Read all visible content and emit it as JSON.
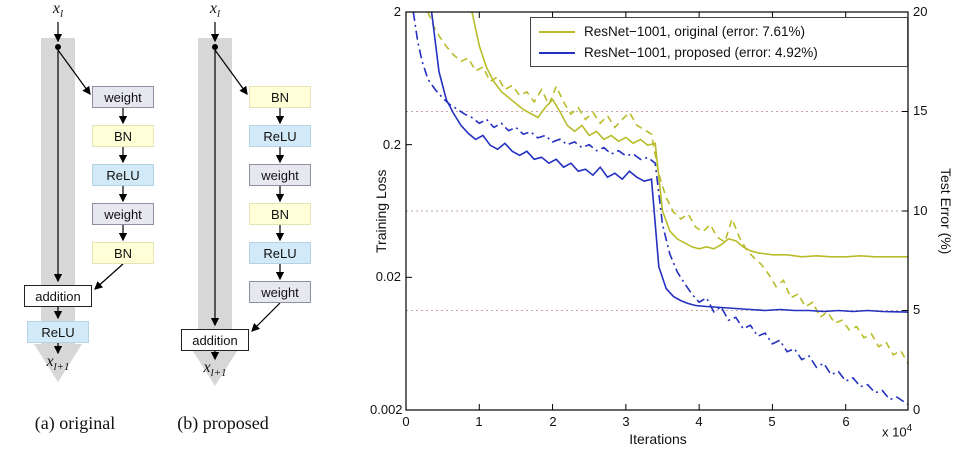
{
  "diagrams": {
    "original": {
      "input_base": "x",
      "input_sub": "l",
      "blocks": [
        "weight",
        "BN",
        "ReLU",
        "weight",
        "BN"
      ],
      "addition_label": "addition",
      "post_block": "ReLU",
      "output_base": "x",
      "output_sub": "l+1",
      "caption": "(a) original"
    },
    "proposed": {
      "input_base": "x",
      "input_sub": "l",
      "blocks": [
        "BN",
        "ReLU",
        "weight",
        "BN",
        "ReLU",
        "weight"
      ],
      "addition_label": "addition",
      "output_base": "x",
      "output_sub": "l+1",
      "caption": "(b) proposed"
    }
  },
  "chart_data": {
    "type": "line",
    "title": "",
    "xlabel": "Iterations",
    "x_unit_base": "x 10",
    "x_unit_sup": "4",
    "ylabel_left": "Training Loss",
    "ylabel_right": "Test Error (%)",
    "x_max": 6.85,
    "x_ticks": [
      "0",
      "1",
      "2",
      "3",
      "4",
      "5",
      "6"
    ],
    "x_tick_values": [
      0,
      1,
      2,
      3,
      4,
      5,
      6
    ],
    "y_left_scale": "log",
    "y_left_ticks": [
      "2",
      "0.2",
      "0.02",
      "0.002"
    ],
    "y_left_tick_values": [
      2,
      0.2,
      0.02,
      0.002
    ],
    "y_left_range": [
      0.002,
      2
    ],
    "y_right_ticks": [
      "20",
      "15",
      "10",
      "5",
      "0"
    ],
    "y_right_tick_values": [
      20,
      15,
      10,
      5,
      0
    ],
    "y_right_range": [
      0,
      20
    ],
    "gridlines_right_values": [
      15,
      10,
      5
    ],
    "legend": [
      {
        "label": "ResNet−1001, original (error: 7.61%)",
        "color": "#b9bc2a"
      },
      {
        "label": "ResNet−1001, proposed (error: 4.92%)",
        "color": "#2431c0"
      }
    ],
    "series": [
      {
        "name": "original-training-loss",
        "axis": "left",
        "style": "dashed",
        "color": "#b9bc2a",
        "points": [
          [
            0.3,
            2.0
          ],
          [
            0.38,
            1.55
          ],
          [
            0.46,
            1.3
          ],
          [
            0.55,
            1.1
          ],
          [
            0.65,
            0.95
          ],
          [
            0.75,
            0.85
          ],
          [
            0.85,
            0.9
          ],
          [
            0.95,
            0.72
          ],
          [
            1.05,
            0.77
          ],
          [
            1.15,
            0.6
          ],
          [
            1.25,
            0.65
          ],
          [
            1.35,
            0.52
          ],
          [
            1.45,
            0.56
          ],
          [
            1.55,
            0.47
          ],
          [
            1.65,
            0.5
          ],
          [
            1.75,
            0.42
          ],
          [
            1.85,
            0.52
          ],
          [
            1.95,
            0.4
          ],
          [
            2.05,
            0.55
          ],
          [
            2.15,
            0.42
          ],
          [
            2.25,
            0.34
          ],
          [
            2.35,
            0.38
          ],
          [
            2.45,
            0.31
          ],
          [
            2.55,
            0.35
          ],
          [
            2.65,
            0.29
          ],
          [
            2.75,
            0.33
          ],
          [
            2.85,
            0.27
          ],
          [
            2.95,
            0.31
          ],
          [
            3.05,
            0.35
          ],
          [
            3.15,
            0.28
          ],
          [
            3.25,
            0.26
          ],
          [
            3.35,
            0.24
          ],
          [
            3.45,
            0.12
          ],
          [
            3.55,
            0.08
          ],
          [
            3.65,
            0.062
          ],
          [
            3.75,
            0.055
          ],
          [
            3.85,
            0.06
          ],
          [
            3.95,
            0.048
          ],
          [
            4.05,
            0.044
          ],
          [
            4.15,
            0.05
          ],
          [
            4.25,
            0.04
          ],
          [
            4.35,
            0.037
          ],
          [
            4.45,
            0.055
          ],
          [
            4.55,
            0.04
          ],
          [
            4.65,
            0.032
          ],
          [
            4.75,
            0.028
          ],
          [
            4.85,
            0.025
          ],
          [
            4.95,
            0.021
          ],
          [
            5.05,
            0.017
          ],
          [
            5.15,
            0.019
          ],
          [
            5.25,
            0.014
          ],
          [
            5.35,
            0.015
          ],
          [
            5.45,
            0.012
          ],
          [
            5.55,
            0.013
          ],
          [
            5.65,
            0.01
          ],
          [
            5.75,
            0.011
          ],
          [
            5.85,
            0.009
          ],
          [
            5.95,
            0.0095
          ],
          [
            6.05,
            0.008
          ],
          [
            6.15,
            0.0085
          ],
          [
            6.25,
            0.007
          ],
          [
            6.35,
            0.0075
          ],
          [
            6.45,
            0.006
          ],
          [
            6.55,
            0.0065
          ],
          [
            6.65,
            0.0052
          ],
          [
            6.75,
            0.0056
          ],
          [
            6.85,
            0.0045
          ]
        ]
      },
      {
        "name": "proposed-training-loss",
        "axis": "left",
        "style": "dashdot",
        "color": "#2431c0",
        "points": [
          [
            0.1,
            2.0
          ],
          [
            0.16,
            1.2
          ],
          [
            0.22,
            0.85
          ],
          [
            0.3,
            0.62
          ],
          [
            0.4,
            0.52
          ],
          [
            0.5,
            0.45
          ],
          [
            0.6,
            0.4
          ],
          [
            0.7,
            0.37
          ],
          [
            0.8,
            0.34
          ],
          [
            0.9,
            0.32
          ],
          [
            1.0,
            0.29
          ],
          [
            1.1,
            0.31
          ],
          [
            1.2,
            0.27
          ],
          [
            1.3,
            0.29
          ],
          [
            1.4,
            0.255
          ],
          [
            1.5,
            0.27
          ],
          [
            1.6,
            0.24
          ],
          [
            1.7,
            0.25
          ],
          [
            1.8,
            0.225
          ],
          [
            1.9,
            0.235
          ],
          [
            2.0,
            0.21
          ],
          [
            2.1,
            0.22
          ],
          [
            2.2,
            0.2
          ],
          [
            2.3,
            0.21
          ],
          [
            2.4,
            0.19
          ],
          [
            2.5,
            0.2
          ],
          [
            2.6,
            0.18
          ],
          [
            2.7,
            0.19
          ],
          [
            2.8,
            0.17
          ],
          [
            2.9,
            0.18
          ],
          [
            3.0,
            0.165
          ],
          [
            3.1,
            0.17
          ],
          [
            3.2,
            0.155
          ],
          [
            3.3,
            0.16
          ],
          [
            3.4,
            0.145
          ],
          [
            3.5,
            0.05
          ],
          [
            3.6,
            0.03
          ],
          [
            3.7,
            0.022
          ],
          [
            3.8,
            0.018
          ],
          [
            3.9,
            0.015
          ],
          [
            4.0,
            0.013
          ],
          [
            4.1,
            0.014
          ],
          [
            4.2,
            0.011
          ],
          [
            4.3,
            0.012
          ],
          [
            4.4,
            0.0095
          ],
          [
            4.5,
            0.01
          ],
          [
            4.6,
            0.0082
          ],
          [
            4.7,
            0.0087
          ],
          [
            4.8,
            0.0072
          ],
          [
            4.9,
            0.0076
          ],
          [
            5.0,
            0.0063
          ],
          [
            5.1,
            0.0067
          ],
          [
            5.2,
            0.0055
          ],
          [
            5.3,
            0.0058
          ],
          [
            5.4,
            0.0048
          ],
          [
            5.5,
            0.0051
          ],
          [
            5.6,
            0.0042
          ],
          [
            5.7,
            0.0045
          ],
          [
            5.8,
            0.0037
          ],
          [
            5.9,
            0.0039
          ],
          [
            6.0,
            0.0033
          ],
          [
            6.1,
            0.0035
          ],
          [
            6.2,
            0.003
          ],
          [
            6.3,
            0.0031
          ],
          [
            6.4,
            0.0027
          ],
          [
            6.5,
            0.0028
          ],
          [
            6.6,
            0.0024
          ],
          [
            6.7,
            0.0025
          ],
          [
            6.85,
            0.0022
          ]
        ]
      },
      {
        "name": "original-test-error",
        "axis": "right",
        "style": "solid",
        "color": "#b9bc2a",
        "points": [
          [
            0.9,
            20
          ],
          [
            1.0,
            18.3
          ],
          [
            1.1,
            17.2
          ],
          [
            1.2,
            16.5
          ],
          [
            1.3,
            16.0
          ],
          [
            1.4,
            15.7
          ],
          [
            1.5,
            15.4
          ],
          [
            1.6,
            15.1
          ],
          [
            1.7,
            14.9
          ],
          [
            1.8,
            14.7
          ],
          [
            1.9,
            15.2
          ],
          [
            2.0,
            15.6
          ],
          [
            2.1,
            15.0
          ],
          [
            2.2,
            14.3
          ],
          [
            2.3,
            14.0
          ],
          [
            2.4,
            14.3
          ],
          [
            2.5,
            13.8
          ],
          [
            2.6,
            14.0
          ],
          [
            2.7,
            13.6
          ],
          [
            2.8,
            13.8
          ],
          [
            2.9,
            13.5
          ],
          [
            3.0,
            13.7
          ],
          [
            3.1,
            13.4
          ],
          [
            3.2,
            13.6
          ],
          [
            3.3,
            13.3
          ],
          [
            3.4,
            13.4
          ],
          [
            3.5,
            10.0
          ],
          [
            3.6,
            9.0
          ],
          [
            3.7,
            8.6
          ],
          [
            3.8,
            8.4
          ],
          [
            3.9,
            8.2
          ],
          [
            4.0,
            8.1
          ],
          [
            4.1,
            8.2
          ],
          [
            4.2,
            8.1
          ],
          [
            4.3,
            8.3
          ],
          [
            4.4,
            8.6
          ],
          [
            4.5,
            8.5
          ],
          [
            4.6,
            8.2
          ],
          [
            4.7,
            8.0
          ],
          [
            4.8,
            7.9
          ],
          [
            5.0,
            7.8
          ],
          [
            5.2,
            7.8
          ],
          [
            5.4,
            7.7
          ],
          [
            5.6,
            7.75
          ],
          [
            5.8,
            7.7
          ],
          [
            6.0,
            7.7
          ],
          [
            6.2,
            7.75
          ],
          [
            6.4,
            7.7
          ],
          [
            6.6,
            7.7
          ],
          [
            6.85,
            7.7
          ]
        ]
      },
      {
        "name": "proposed-test-error",
        "axis": "right",
        "style": "solid",
        "color": "#2431c0",
        "points": [
          [
            0.35,
            20
          ],
          [
            0.45,
            17.0
          ],
          [
            0.55,
            15.6
          ],
          [
            0.65,
            14.9
          ],
          [
            0.75,
            14.3
          ],
          [
            0.85,
            13.9
          ],
          [
            0.95,
            13.6
          ],
          [
            1.05,
            13.8
          ],
          [
            1.15,
            13.3
          ],
          [
            1.25,
            13.1
          ],
          [
            1.35,
            13.4
          ],
          [
            1.45,
            13.0
          ],
          [
            1.55,
            12.8
          ],
          [
            1.65,
            13.0
          ],
          [
            1.75,
            12.6
          ],
          [
            1.85,
            12.7
          ],
          [
            1.95,
            12.4
          ],
          [
            2.05,
            12.6
          ],
          [
            2.15,
            12.2
          ],
          [
            2.25,
            12.4
          ],
          [
            2.35,
            12.0
          ],
          [
            2.45,
            12.1
          ],
          [
            2.55,
            11.8
          ],
          [
            2.65,
            12.2
          ],
          [
            2.75,
            11.7
          ],
          [
            2.85,
            11.9
          ],
          [
            2.95,
            11.6
          ],
          [
            3.05,
            12.0
          ],
          [
            3.15,
            11.7
          ],
          [
            3.25,
            11.5
          ],
          [
            3.35,
            11.6
          ],
          [
            3.45,
            7.2
          ],
          [
            3.55,
            6.1
          ],
          [
            3.65,
            5.7
          ],
          [
            3.75,
            5.5
          ],
          [
            3.85,
            5.35
          ],
          [
            3.95,
            5.25
          ],
          [
            4.1,
            5.2
          ],
          [
            4.3,
            5.15
          ],
          [
            4.5,
            5.1
          ],
          [
            4.7,
            5.05
          ],
          [
            4.9,
            5.0
          ],
          [
            5.1,
            5.05
          ],
          [
            5.3,
            5.0
          ],
          [
            5.5,
            5.0
          ],
          [
            5.7,
            4.95
          ],
          [
            5.9,
            5.0
          ],
          [
            6.1,
            4.95
          ],
          [
            6.3,
            5.0
          ],
          [
            6.5,
            4.95
          ],
          [
            6.85,
            4.92
          ]
        ]
      }
    ]
  }
}
